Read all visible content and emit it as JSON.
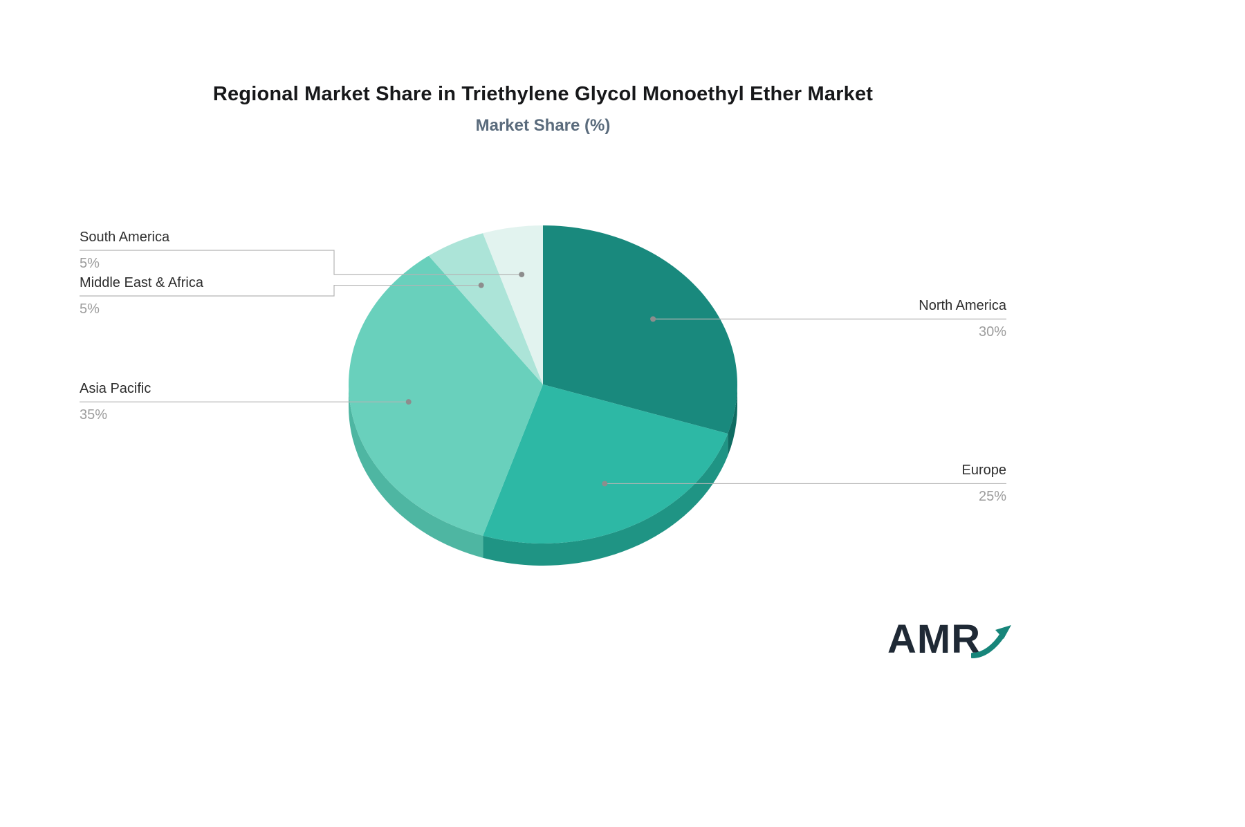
{
  "chart_data": {
    "type": "pie",
    "title": "Regional Market Share in Triethylene Glycol Monoethyl Ether Market",
    "subtitle": "Market Share (%)",
    "unit": "%",
    "style": "3d-pie",
    "legend_position": "none",
    "labels_style": "callout-lines",
    "start_angle_deg": -90,
    "direction": "clockwise",
    "slices": [
      {
        "label": "North America",
        "value": 30,
        "value_label": "30%",
        "color": "#19897d",
        "depth_color": "#0f6c62"
      },
      {
        "label": "Europe",
        "value": 25,
        "value_label": "25%",
        "color": "#2db8a5",
        "depth_color": "#1f9484"
      },
      {
        "label": "Asia Pacific",
        "value": 35,
        "value_label": "35%",
        "color": "#69d0bc",
        "depth_color": "#4eb6a2"
      },
      {
        "label": "Middle East & Africa",
        "value": 5,
        "value_label": "5%",
        "color": "#ace4d8",
        "depth_color": "#8ed0c2"
      },
      {
        "label": "South America",
        "value": 5,
        "value_label": "5%",
        "color": "#e2f3ef",
        "depth_color": "#c9e5de"
      }
    ]
  },
  "callout_colors": {
    "line": "#b4b4b4",
    "dot": "#8d8d8d",
    "label_text": "#2d2d2d",
    "value_text": "#9c9c9c"
  },
  "logo": {
    "text": "AMR",
    "arrow_icon": "trending-up-arrow",
    "color": "#1f2935",
    "accent_color": "#17857a"
  }
}
